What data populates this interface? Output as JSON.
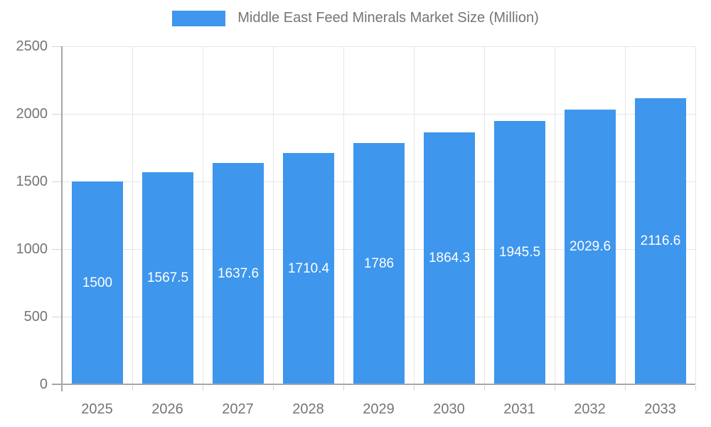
{
  "chart_data": {
    "type": "bar",
    "title": "Middle East Feed Minerals Market Size (Million)",
    "categories": [
      "2025",
      "2026",
      "2027",
      "2028",
      "2029",
      "2030",
      "2031",
      "2032",
      "2033"
    ],
    "values": [
      1500,
      1567.5,
      1637.6,
      1710.4,
      1786,
      1864.3,
      1945.5,
      2029.6,
      2116.6
    ],
    "value_labels": [
      "1500",
      "1567.5",
      "1637.6",
      "1710.4",
      "1786",
      "1864.3",
      "1945.5",
      "2029.6",
      "2116.6"
    ],
    "xlabel": "",
    "ylabel": "",
    "ylim": [
      0,
      2500
    ],
    "ytick_labels": [
      "0",
      "500",
      "1000",
      "1500",
      "2000",
      "2500"
    ],
    "grid": "on",
    "legend_position": "top-center",
    "colors": {
      "bar": "#3E96ED",
      "bar_value_text": "#ffffff",
      "axis_text": "#757575",
      "grid_line": "#e6e6e6",
      "axis_line": "#a6a6a6",
      "tick_mark": "#d4d4d4",
      "background": "#ffffff"
    }
  }
}
